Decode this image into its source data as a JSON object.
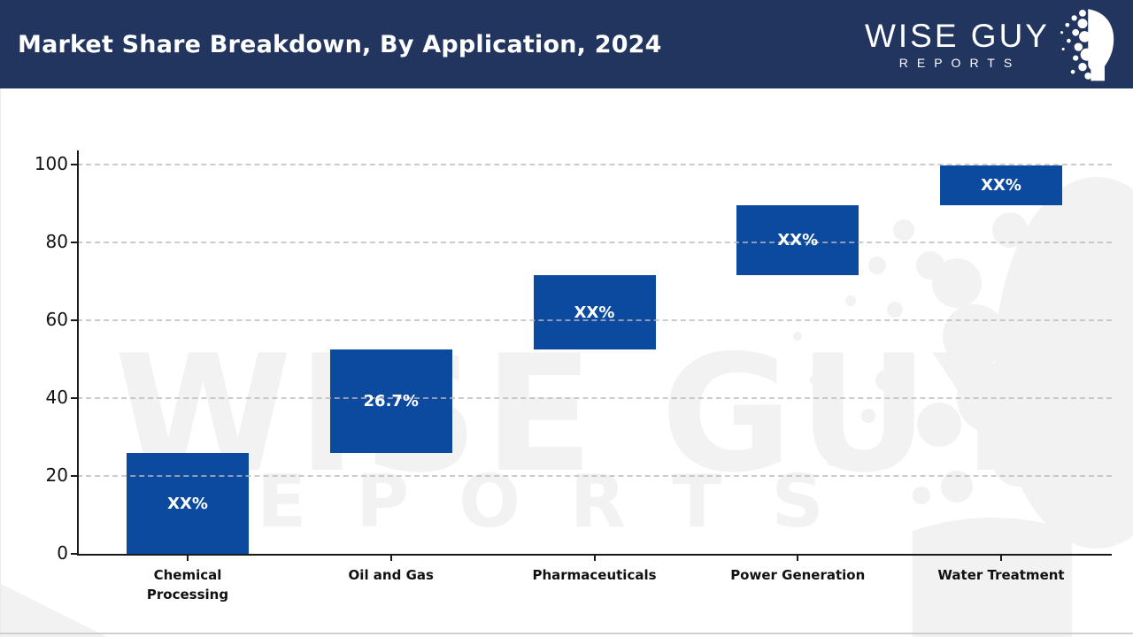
{
  "header": {
    "title": "Market Share Breakdown, By Application, 2024",
    "bg_color": "#22355f",
    "logo": {
      "brand": "WISE GUY",
      "sub": "REPORTS",
      "face_icon": "dotted-head-profile"
    }
  },
  "watermark": {
    "line1": "WISE GUY",
    "line2": "REPORTS"
  },
  "chart_data": {
    "type": "bar",
    "subtype": "waterfall-floating-bars",
    "title": "Market Share Breakdown, By Application, 2024",
    "categories": [
      "Chemical Processing",
      "Oil and Gas",
      "Pharmaceuticals",
      "Power Generation",
      "Water Treatment"
    ],
    "category_label_lines": [
      [
        "Chemical",
        "Processing"
      ],
      [
        "Oil and Gas"
      ],
      [
        "Pharmaceuticals"
      ],
      [
        "Power Generation"
      ],
      [
        "Water Treatment"
      ]
    ],
    "segments": [
      {
        "category": "Chemical Processing",
        "start": 0,
        "end": 25.8,
        "label": "XX%"
      },
      {
        "category": "Oil and Gas",
        "start": 25.8,
        "end": 52.5,
        "label": "26.7%"
      },
      {
        "category": "Pharmaceuticals",
        "start": 52.5,
        "end": 71.5,
        "label": "XX%"
      },
      {
        "category": "Power Generation",
        "start": 71.5,
        "end": 89.5,
        "label": "XX%"
      },
      {
        "category": "Water Treatment",
        "start": 89.5,
        "end": 99.8,
        "label": "XX%"
      }
    ],
    "xlabel": "",
    "ylabel": "",
    "yticks": [
      0,
      20,
      40,
      60,
      80,
      100
    ],
    "ylim": [
      0,
      104
    ],
    "grid": "dashed-horizontal-over-bars",
    "legend": "none",
    "bar_color": "#0c4aa0",
    "bar_label_color": "#ffffff",
    "axis_color": "#1a1a1a",
    "gridline_color": "#bdbdbd",
    "watermark_color": "#f2f2f2"
  }
}
